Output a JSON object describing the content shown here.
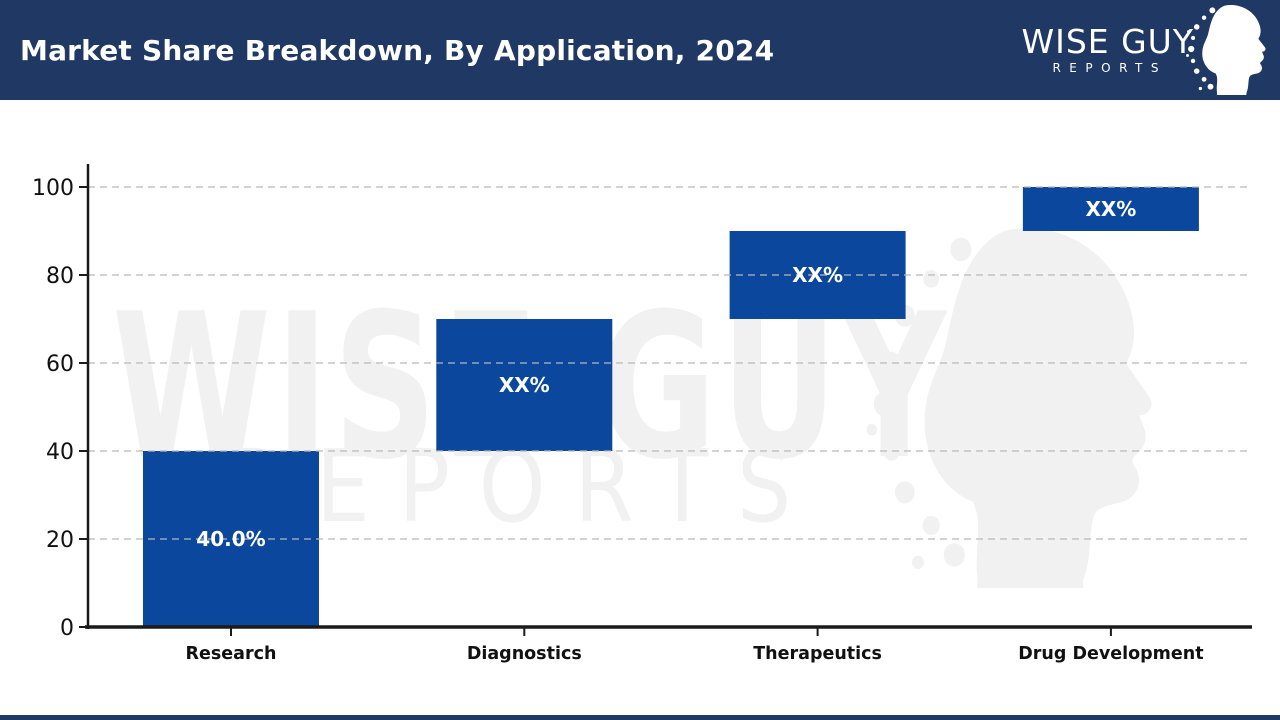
{
  "header": {
    "title": "Market Share Breakdown, By Application, 2024",
    "bg_color": "#1f3864",
    "logo": {
      "line1": "WISE GUY",
      "line2": "REPORTS"
    }
  },
  "watermark": {
    "line1": "WISE GUY",
    "line2": "REPORTS"
  },
  "footer": {
    "bg_color": "#1f3864"
  },
  "chart_data": {
    "type": "bar",
    "variant": "floating-segment waterfall of cumulative market share",
    "title": "Market Share Breakdown, By Application, 2024",
    "categories": [
      "Research",
      "Diagnostics",
      "Therapeutics",
      "Drug Development"
    ],
    "series": [
      {
        "name": "Market share segment",
        "ranges": [
          [
            0,
            40
          ],
          [
            40,
            70
          ],
          [
            70,
            90
          ],
          [
            90,
            100
          ]
        ],
        "segment_sizes": [
          40,
          30,
          20,
          10
        ],
        "labels": [
          "40.0%",
          "XX%",
          "XX%",
          "XX%"
        ]
      }
    ],
    "yticks": [
      0,
      20,
      40,
      60,
      80,
      100
    ],
    "ylim": [
      0,
      105
    ],
    "xlabel": "",
    "ylabel": "",
    "grid": "horizontal dashed, drawn over bars",
    "legend": "none",
    "colors": {
      "bar": "#0a479d",
      "grid": "#b9b9b9",
      "axis": "#1a1a1a",
      "bar_label": "#ffffff",
      "tick_label": "#111111"
    }
  }
}
